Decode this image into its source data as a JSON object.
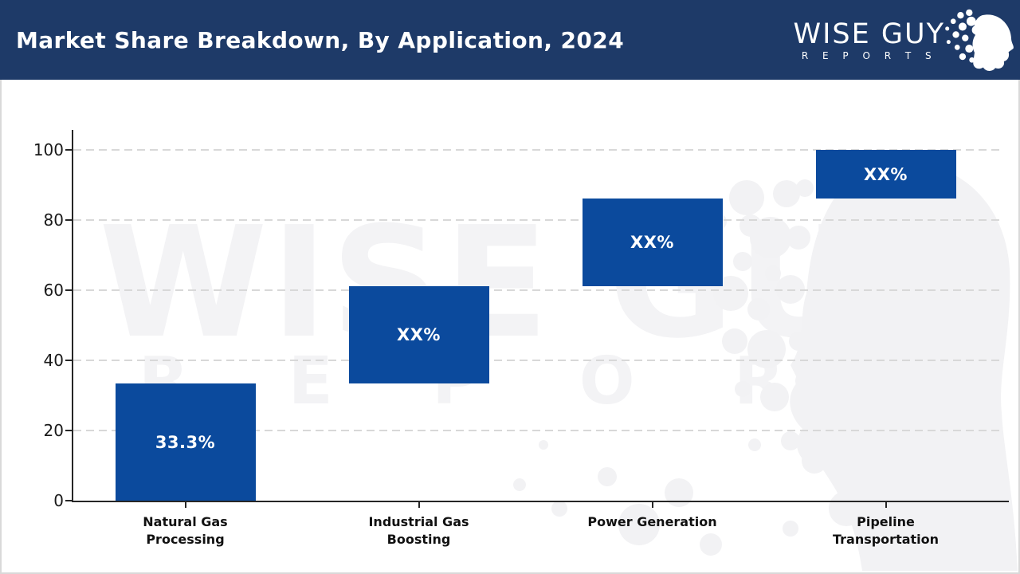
{
  "header": {
    "title": "Market Share Breakdown, By Application, 2024",
    "bg_color": "#1e3a68",
    "logo_line1": "WISE GUY",
    "logo_line2": "R E P O R T S"
  },
  "watermark": {
    "line1": "WISE GUY",
    "line2": "R E P O R T S"
  },
  "chart_data": {
    "type": "bar",
    "variant": "floating-waterfall",
    "title": "Market Share Breakdown, By Application, 2024",
    "categories": [
      "Natural Gas Processing",
      "Industrial Gas Boosting",
      "Power Generation",
      "Pipeline Transportation"
    ],
    "category_label_lines": [
      [
        "Natural Gas",
        "Processing"
      ],
      [
        "Industrial Gas",
        "Boosting"
      ],
      [
        "Power Generation"
      ],
      [
        "Pipeline",
        "Transportation"
      ]
    ],
    "series": [
      {
        "name": "Natural Gas Processing",
        "start": 0,
        "end": 33.3,
        "label": "33.3%"
      },
      {
        "name": "Industrial Gas Boosting",
        "start": 33.3,
        "end": 61.1,
        "label": "XX%"
      },
      {
        "name": "Power Generation",
        "start": 61.1,
        "end": 86.1,
        "label": "XX%"
      },
      {
        "name": "Pipeline Transportation",
        "start": 86.1,
        "end": 100,
        "label": "XX%"
      }
    ],
    "xlabel": "",
    "ylabel": "",
    "ylim": [
      0,
      100
    ],
    "yticks": [
      0,
      20,
      40,
      60,
      80,
      100
    ],
    "grid": "horizontal-dashed",
    "legend": "none",
    "bar_color": "#0b4a9d",
    "bar_label_color": "#ffffff",
    "axis_color": "#262626",
    "grid_color": "#d8d8d8",
    "tick_label_color": "#1a1a1a"
  }
}
